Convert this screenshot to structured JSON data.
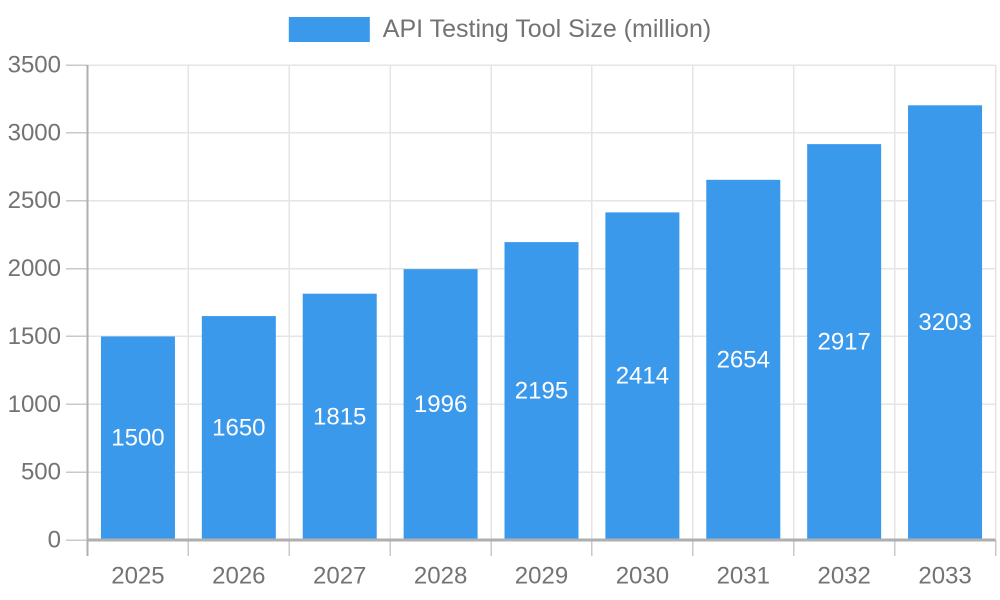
{
  "legend": {
    "label": "API Testing Tool Size (million)"
  },
  "chart_data": {
    "type": "bar",
    "title": "API Testing Tool Size (million)",
    "categories": [
      "2025",
      "2026",
      "2027",
      "2028",
      "2029",
      "2030",
      "2031",
      "2032",
      "2033"
    ],
    "values": [
      1500,
      1650,
      1815,
      1996,
      2195,
      2414,
      2654,
      2917,
      3203
    ],
    "value_labels": [
      "1500",
      "1650",
      "1815",
      "1996",
      "2195",
      "2414",
      "2654",
      "2917",
      "3203"
    ],
    "y_ticks": [
      0,
      500,
      1000,
      1500,
      2000,
      2500,
      3000,
      3500
    ],
    "ylim": [
      0,
      3500
    ],
    "xlabel": "",
    "ylabel": "",
    "grid": true,
    "legend_position": "top-center",
    "colors": {
      "bar": "#3B99EC",
      "grid": "#E5E5E5",
      "tick": "#C9C9C9",
      "axis": "#AFAFAF",
      "axis_label": "#737373",
      "value_label": "#FFFFFF",
      "background": "#FFFFFF"
    }
  }
}
